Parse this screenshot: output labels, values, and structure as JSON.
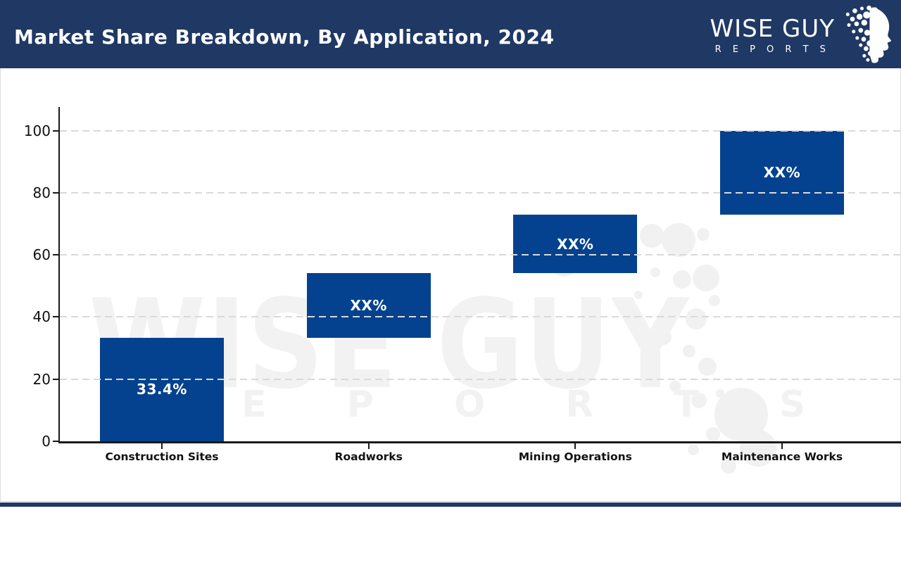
{
  "header": {
    "title": "Market Share Breakdown, By Application, 2024",
    "logo_line1": "WISE GUY",
    "logo_line2": "R E P O R T S"
  },
  "watermark": {
    "line1": "WISE GUY",
    "line2": "R E P O R T S"
  },
  "chart_data": {
    "type": "bar",
    "subtype": "floating-waterfall",
    "title": "Market Share Breakdown, By Application, 2024",
    "categories": [
      "Construction Sites",
      "Roadworks",
      "Mining Operations",
      "Maintenance Works"
    ],
    "segments": [
      {
        "category": "Construction Sites",
        "start": 0,
        "end": 33.4,
        "label": "33.4%"
      },
      {
        "category": "Roadworks",
        "start": 33.4,
        "end": 54.1,
        "label": "XX%"
      },
      {
        "category": "Mining Operations",
        "start": 54.1,
        "end": 72.9,
        "label": "XX%"
      },
      {
        "category": "Maintenance Works",
        "start": 72.9,
        "end": 100,
        "label": "XX%"
      }
    ],
    "yticks": [
      0,
      20,
      40,
      60,
      80,
      100
    ],
    "ylim": [
      0,
      107
    ],
    "xlabel": "",
    "ylabel": "",
    "grid": "horizontal-dashed-over-bars",
    "legend": "none",
    "bar_color": "#04428f",
    "bar_label_color": "#ffffff",
    "axis_color": "#1a1a1a",
    "grid_color": "#d9d9d9"
  },
  "colors": {
    "header_bg": "#1f3864",
    "footer_bg": "#1f3864",
    "background": "#ffffff",
    "watermark": "#f2f2f2"
  }
}
